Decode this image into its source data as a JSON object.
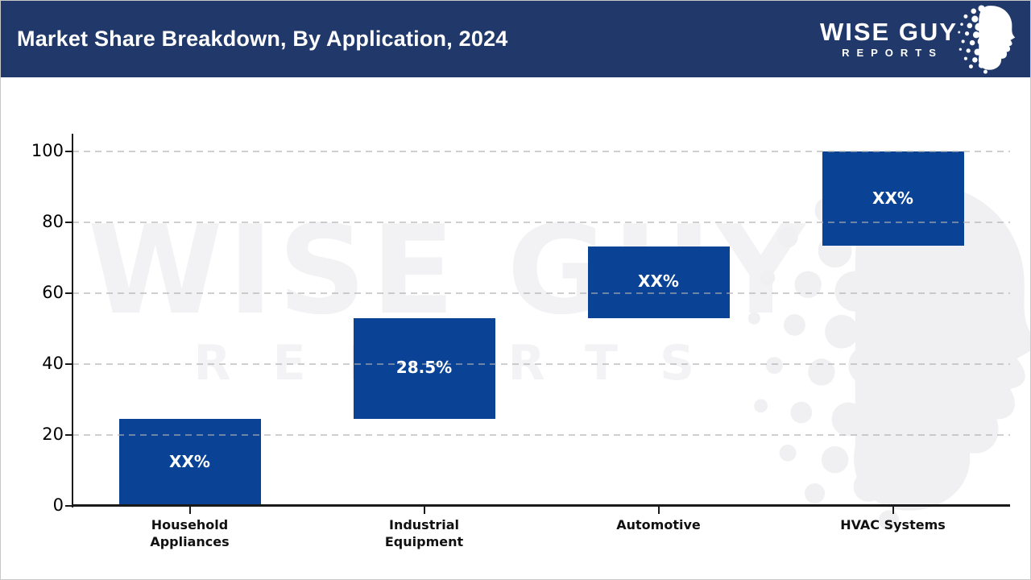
{
  "header": {
    "title": "Market Share Breakdown, By Application, 2024",
    "bg_color": "#21396a",
    "logo": {
      "line1": "WISE GUY",
      "line2": "REPORTS"
    }
  },
  "watermark": {
    "line1": "WISE GUY",
    "line2": "REPORTS"
  },
  "chart_data": {
    "type": "bar",
    "subtype": "waterfall-floating-segments",
    "title": "Market Share Breakdown, By Application, 2024",
    "xlabel": "",
    "ylabel": "",
    "ylim": [
      0,
      105
    ],
    "yticks": [
      0,
      20,
      40,
      60,
      80,
      100
    ],
    "grid": "dashed horizontal gridlines, drawn over bars",
    "legend": "none",
    "bar_color": "#0a4395",
    "bar_label_color": "#ffffff",
    "categories": [
      [
        "Household",
        "Appliances"
      ],
      [
        "Industrial",
        "Equipment"
      ],
      [
        "Automotive"
      ],
      [
        "HVAC Systems"
      ]
    ],
    "segments": [
      {
        "category": "Household Appliances",
        "start": 0,
        "end": 24.5,
        "height": 24.5,
        "label": "XX%"
      },
      {
        "category": "Industrial Equipment",
        "start": 24.5,
        "end": 53,
        "height": 28.5,
        "label": "28.5%"
      },
      {
        "category": "Automotive",
        "start": 53,
        "end": 73.2,
        "height": 20.2,
        "label": "XX%"
      },
      {
        "category": "HVAC Systems",
        "start": 73.3,
        "end": 100,
        "height": 26.7,
        "label": "XX%"
      }
    ]
  }
}
